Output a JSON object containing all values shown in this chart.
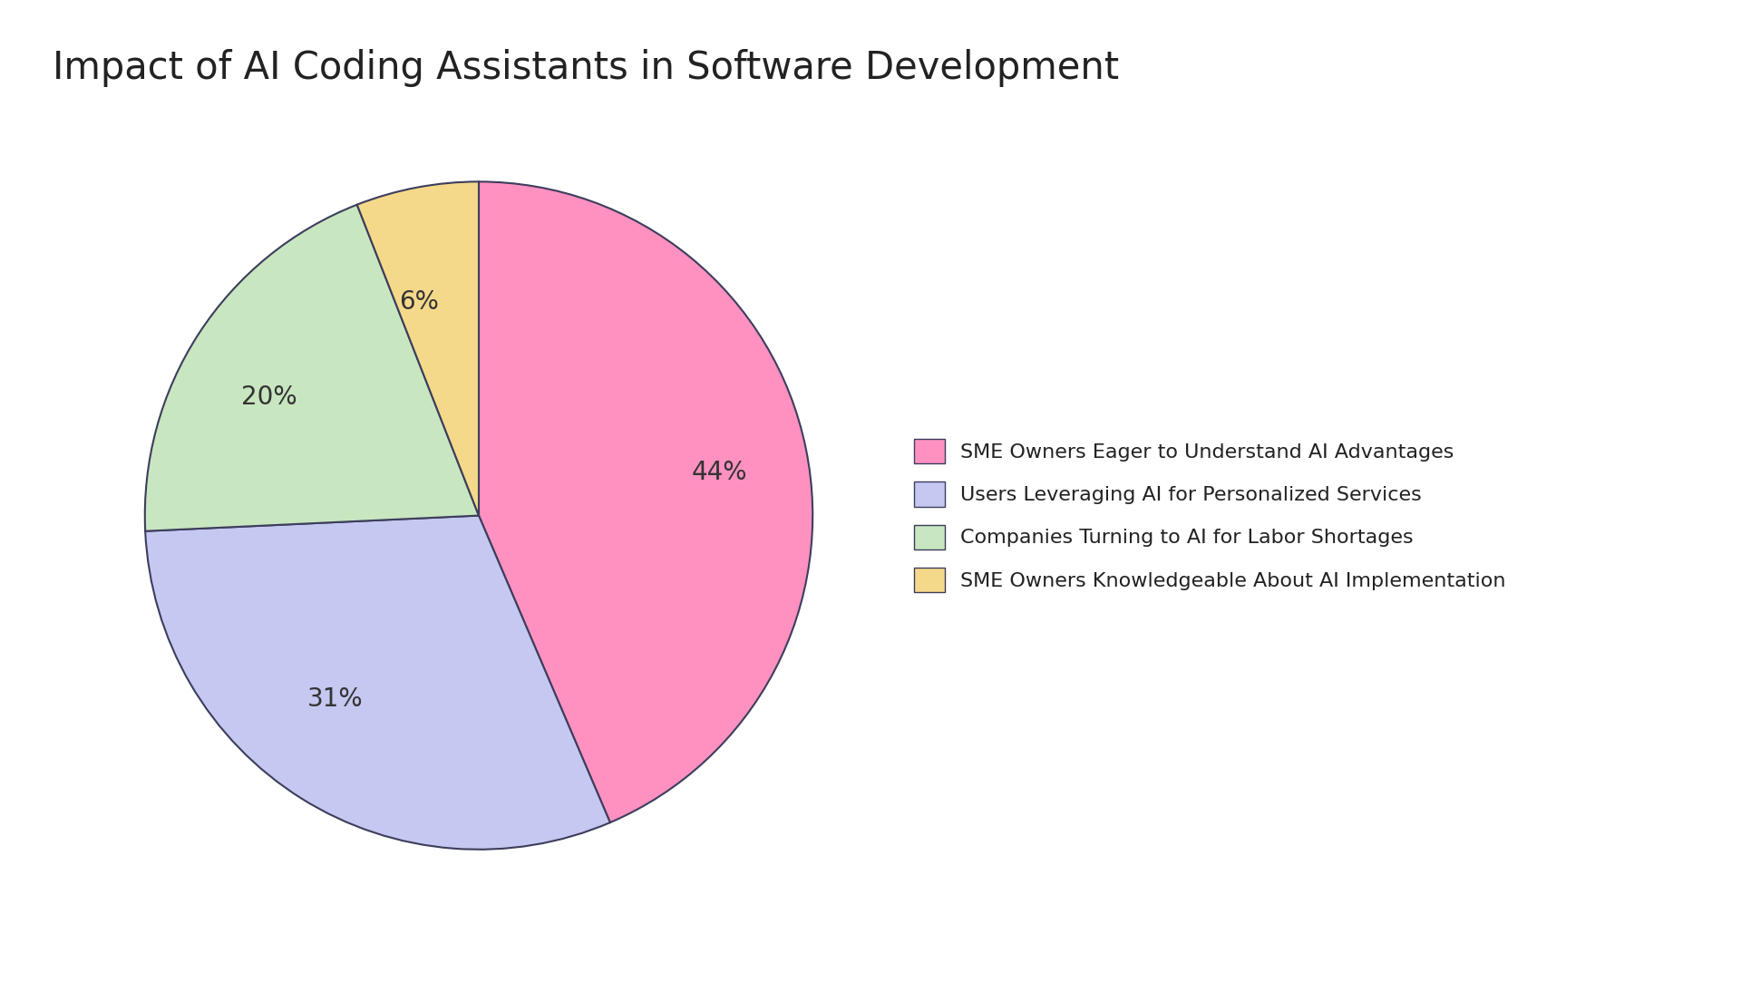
{
  "title": "Impact of AI Coding Assistants in Software Development",
  "slices": [
    44,
    31,
    20,
    6
  ],
  "labels": [
    "44%",
    "31%",
    "20%",
    "6%"
  ],
  "colors": [
    "#FF91C1",
    "#C5C8F0",
    "#C8E6C0",
    "#F5D98B"
  ],
  "legend_labels": [
    "SME Owners Eager to Understand AI Advantages",
    "Users Leveraging AI for Personalized Services",
    "Companies Turning to AI for Labor Shortages",
    "SME Owners Knowledgeable About AI Implementation"
  ],
  "edge_color": "#3d3d5c",
  "edge_linewidth": 1.5,
  "background_color": "#ffffff",
  "title_fontsize": 30,
  "title_color": "#222222",
  "label_fontsize": 20,
  "label_color": "#333333",
  "legend_fontsize": 16,
  "startangle": 90
}
